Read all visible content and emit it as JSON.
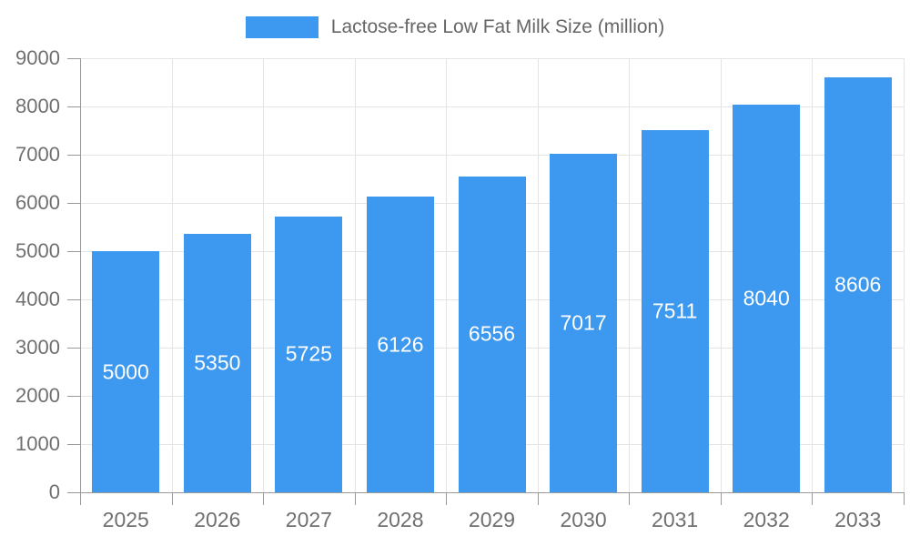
{
  "legend": {
    "label": "Lactose-free Low Fat Milk Size (million)"
  },
  "colors": {
    "bar": "#3D99F0",
    "grid": "#E4E4E4",
    "axis": "#999999",
    "axis_label": "#707070",
    "legend_text": "#666666",
    "bar_label": "#FFFFFF",
    "background": "#FFFFFF"
  },
  "chart_data": {
    "type": "bar",
    "title": "Lactose-free Low Fat Milk Size (million)",
    "series_name": "Lactose-free Low Fat Milk Size (million)",
    "categories": [
      "2025",
      "2026",
      "2027",
      "2028",
      "2029",
      "2030",
      "2031",
      "2032",
      "2033"
    ],
    "values": [
      5000,
      5350,
      5725,
      6126,
      6556,
      7017,
      7511,
      8040,
      8606
    ],
    "xlabel": "",
    "ylabel": "",
    "ylim": [
      0,
      9000
    ],
    "y_ticks": [
      0,
      1000,
      2000,
      3000,
      4000,
      5000,
      6000,
      7000,
      8000,
      9000
    ],
    "grid": true,
    "legend_position": "top-center",
    "value_labels": "inside-center"
  }
}
